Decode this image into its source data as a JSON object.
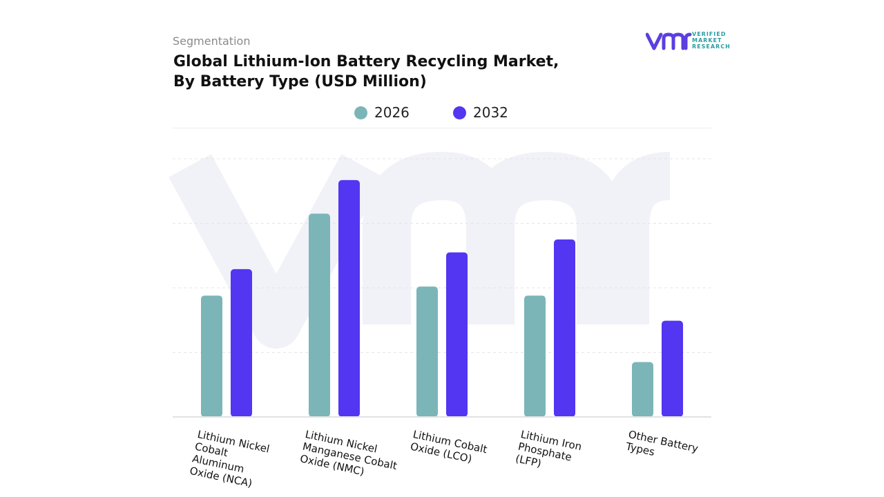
{
  "header": {
    "segment": "Segmentation",
    "title_line1": "Global Lithium-Ion Battery Recycling Market,",
    "title_line2": "By Battery Type (USD Million)"
  },
  "logo": {
    "line1": "VERIFIED",
    "line2": "MARKET",
    "line3": "RESEARCH",
    "color": "#5b3fe0"
  },
  "legend": [
    {
      "label": "2026",
      "color": "#7bb5b8"
    },
    {
      "label": "2032",
      "color": "#5236f2"
    }
  ],
  "chart_data": {
    "type": "bar",
    "categories": [
      "Lithium Nickel Cobalt Aluminum Oxide (NCA)",
      "Lithium Nickel Manganese Cobalt Oxide (NMC)",
      "Lithium Cobalt Oxide (LCO)",
      "Lithium Iron Phosphate (LFP)",
      "Other Battery Types"
    ],
    "series": [
      {
        "name": "2026",
        "color": "#7bb5b8",
        "values": [
          1.88,
          3.15,
          2.02,
          1.88,
          0.85
        ]
      },
      {
        "name": "2032",
        "color": "#5236f2",
        "values": [
          2.29,
          3.67,
          2.55,
          2.75,
          1.49
        ]
      }
    ],
    "ylim": [
      0,
      4
    ],
    "grid": true,
    "legend_position": "top-center"
  }
}
